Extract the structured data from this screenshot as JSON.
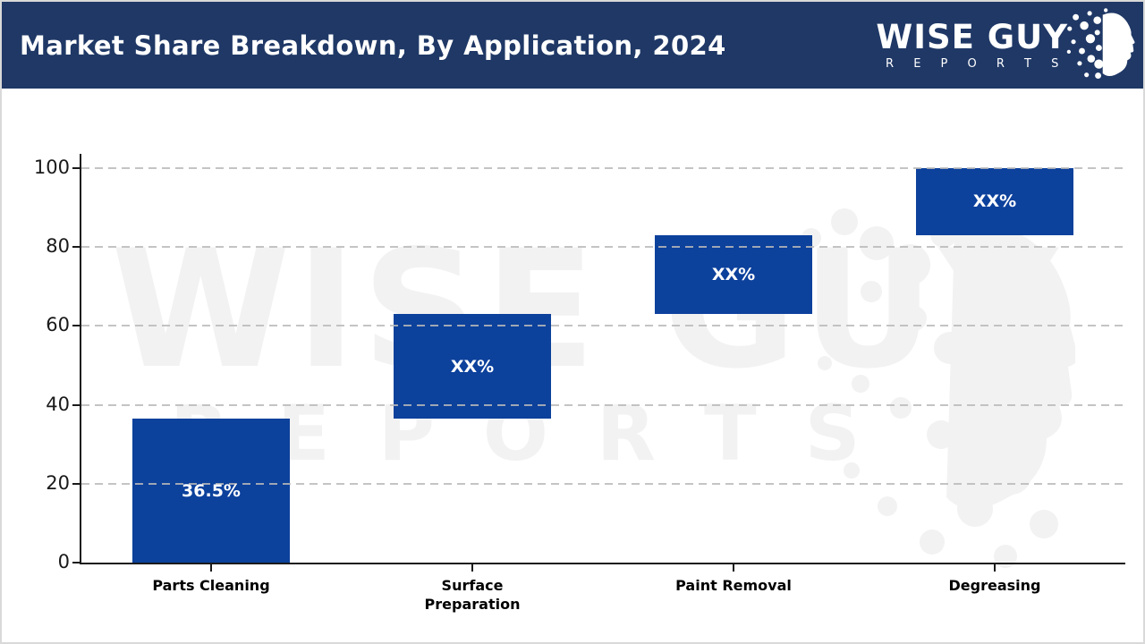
{
  "header": {
    "title": "Market Share Breakdown, By Application, 2024",
    "logo": {
      "line1": "WISE GUY",
      "line2": "R E P O R T S"
    }
  },
  "watermark": {
    "line1": "WISE GUY",
    "line2": "R E P O R T S"
  },
  "colors": {
    "header_bg": "#1f3866",
    "bar": "#0c419c",
    "bar_label": "#ffffff",
    "grid": "#c9c9c9",
    "axis": "#1a1a1a",
    "watermark": "#f2f2f2",
    "page_border": "#d9d9d9"
  },
  "chart_data": {
    "type": "bar",
    "subtype": "floating-waterfall",
    "title": "Market Share Breakdown, By Application, 2024",
    "categories": [
      "Parts Cleaning",
      "Surface\nPreparation",
      "Paint Removal",
      "Degreasing"
    ],
    "segments": [
      {
        "category": "Parts Cleaning",
        "start": 0,
        "end": 36.5,
        "label": "36.5%"
      },
      {
        "category": "Surface Preparation",
        "start": 36.5,
        "end": 63,
        "label": "XX%"
      },
      {
        "category": "Paint Removal",
        "start": 63,
        "end": 83,
        "label": "XX%"
      },
      {
        "category": "Degreasing",
        "start": 83,
        "end": 100,
        "label": "XX%"
      }
    ],
    "ylim": [
      0,
      100
    ],
    "yticks": [
      0,
      20,
      40,
      60,
      80,
      100
    ],
    "xlabel": "",
    "ylabel": "",
    "grid": "horizontal-dashed-over-bars",
    "legend": "none"
  }
}
